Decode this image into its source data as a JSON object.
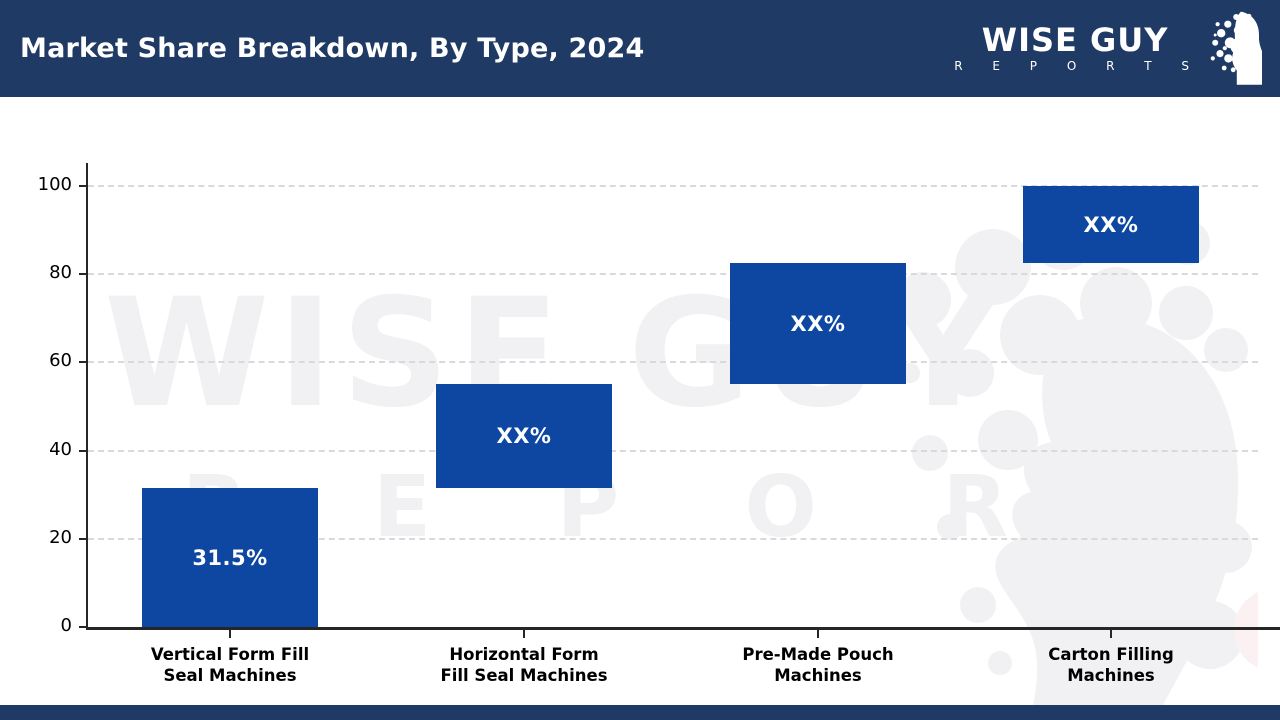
{
  "header": {
    "title": "Market Share Breakdown, By Type, 2024",
    "logo": {
      "wordmark": "WISE GUY",
      "subtext": "R E P O R T S"
    }
  },
  "watermark": {
    "wordmark": "WISE GUY",
    "subtext": "R E P O R T S"
  },
  "colors": {
    "header_bg": "#1f3a64",
    "footer_bg": "#1f3a64",
    "bar": "#0d47a1",
    "bar_label_text": "#ffffff",
    "grid": "#d9d9d9",
    "axis": "#262626",
    "tick_text": "#000000",
    "watermark": "#f1f1f4"
  },
  "chart_data": {
    "type": "bar",
    "subtype": "floating-waterfall",
    "title": "Market Share Breakdown, By Type, 2024",
    "categories": [
      {
        "lines": [
          "Vertical Form Fill",
          "Seal Machines"
        ]
      },
      {
        "lines": [
          "Horizontal Form",
          "Fill Seal Machines"
        ]
      },
      {
        "lines": [
          "Pre-Made Pouch",
          "Machines"
        ]
      },
      {
        "lines": [
          "Carton Filling",
          "Machines"
        ]
      }
    ],
    "segments": [
      {
        "category": "Vertical Form Fill Seal Machines",
        "start": 0,
        "end": 31.5,
        "label": "31.5%"
      },
      {
        "category": "Horizontal Form Fill Seal Machines",
        "start": 31.5,
        "end": 55,
        "label": "XX%"
      },
      {
        "category": "Pre-Made Pouch Machines",
        "start": 55,
        "end": 82.5,
        "label": "XX%"
      },
      {
        "category": "Carton Filling Machines",
        "start": 82.5,
        "end": 100,
        "label": "XX%"
      }
    ],
    "yticks": [
      0,
      20,
      40,
      60,
      80,
      100
    ],
    "ylim": [
      0,
      105
    ],
    "xlabel": "",
    "ylabel": "",
    "grid": "horizontal-dashed",
    "legend": "none"
  }
}
